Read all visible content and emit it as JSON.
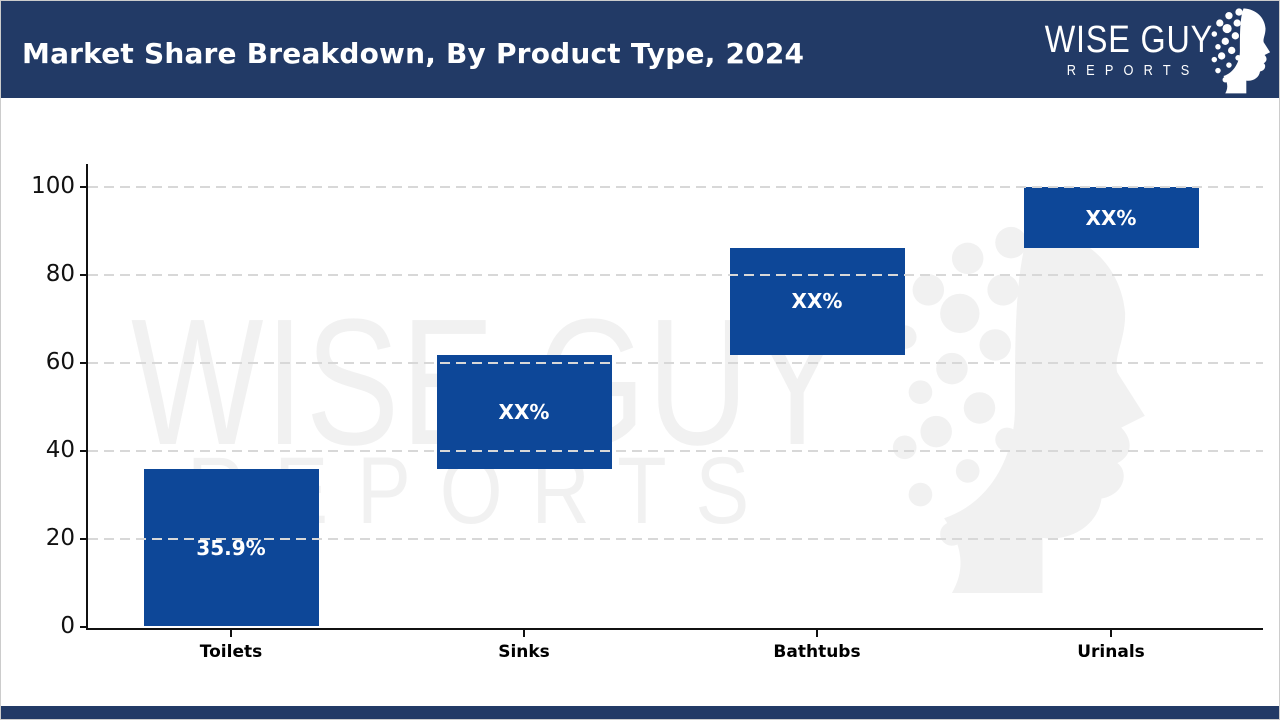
{
  "header": {
    "title": "Market Share Breakdown, By Product Type, 2024"
  },
  "brand": {
    "name_line1": "WISE GUY",
    "name_line2": "REPORTS",
    "face_icon": "dotted-face-profile"
  },
  "watermark": {
    "line1": "WISE GUY",
    "line2": "REPORTS"
  },
  "colors": {
    "header_navy": "#223a66",
    "bar_blue": "#0d4798",
    "grid_gray": "#d8d8d8",
    "axis_black": "#111111",
    "bar_label_white": "#ffffff",
    "watermark_gray": "#f1f1f1"
  },
  "chart_data": {
    "type": "bar",
    "variant": "waterfall",
    "title": "Market Share Breakdown, By Product Type, 2024",
    "categories": [
      "Toilets",
      "Sinks",
      "Bathtubs",
      "Urinals"
    ],
    "segments": [
      {
        "category": "Toilets",
        "start": 0,
        "end": 35.9,
        "label": "35.9%"
      },
      {
        "category": "Sinks",
        "start": 35.9,
        "end": 61.9,
        "label": "XX%"
      },
      {
        "category": "Bathtubs",
        "start": 61.9,
        "end": 86.1,
        "label": "XX%"
      },
      {
        "category": "Urinals",
        "start": 86.1,
        "end": 100,
        "label": "XX%"
      }
    ],
    "xlabel": "",
    "ylabel": "",
    "y_axis": {
      "ticks": [
        0,
        20,
        40,
        60,
        80,
        100
      ],
      "range": [
        0,
        105
      ]
    },
    "grid": {
      "horizontal": true,
      "style": "dashed",
      "drawn_over_bars": true
    },
    "legend": null
  }
}
